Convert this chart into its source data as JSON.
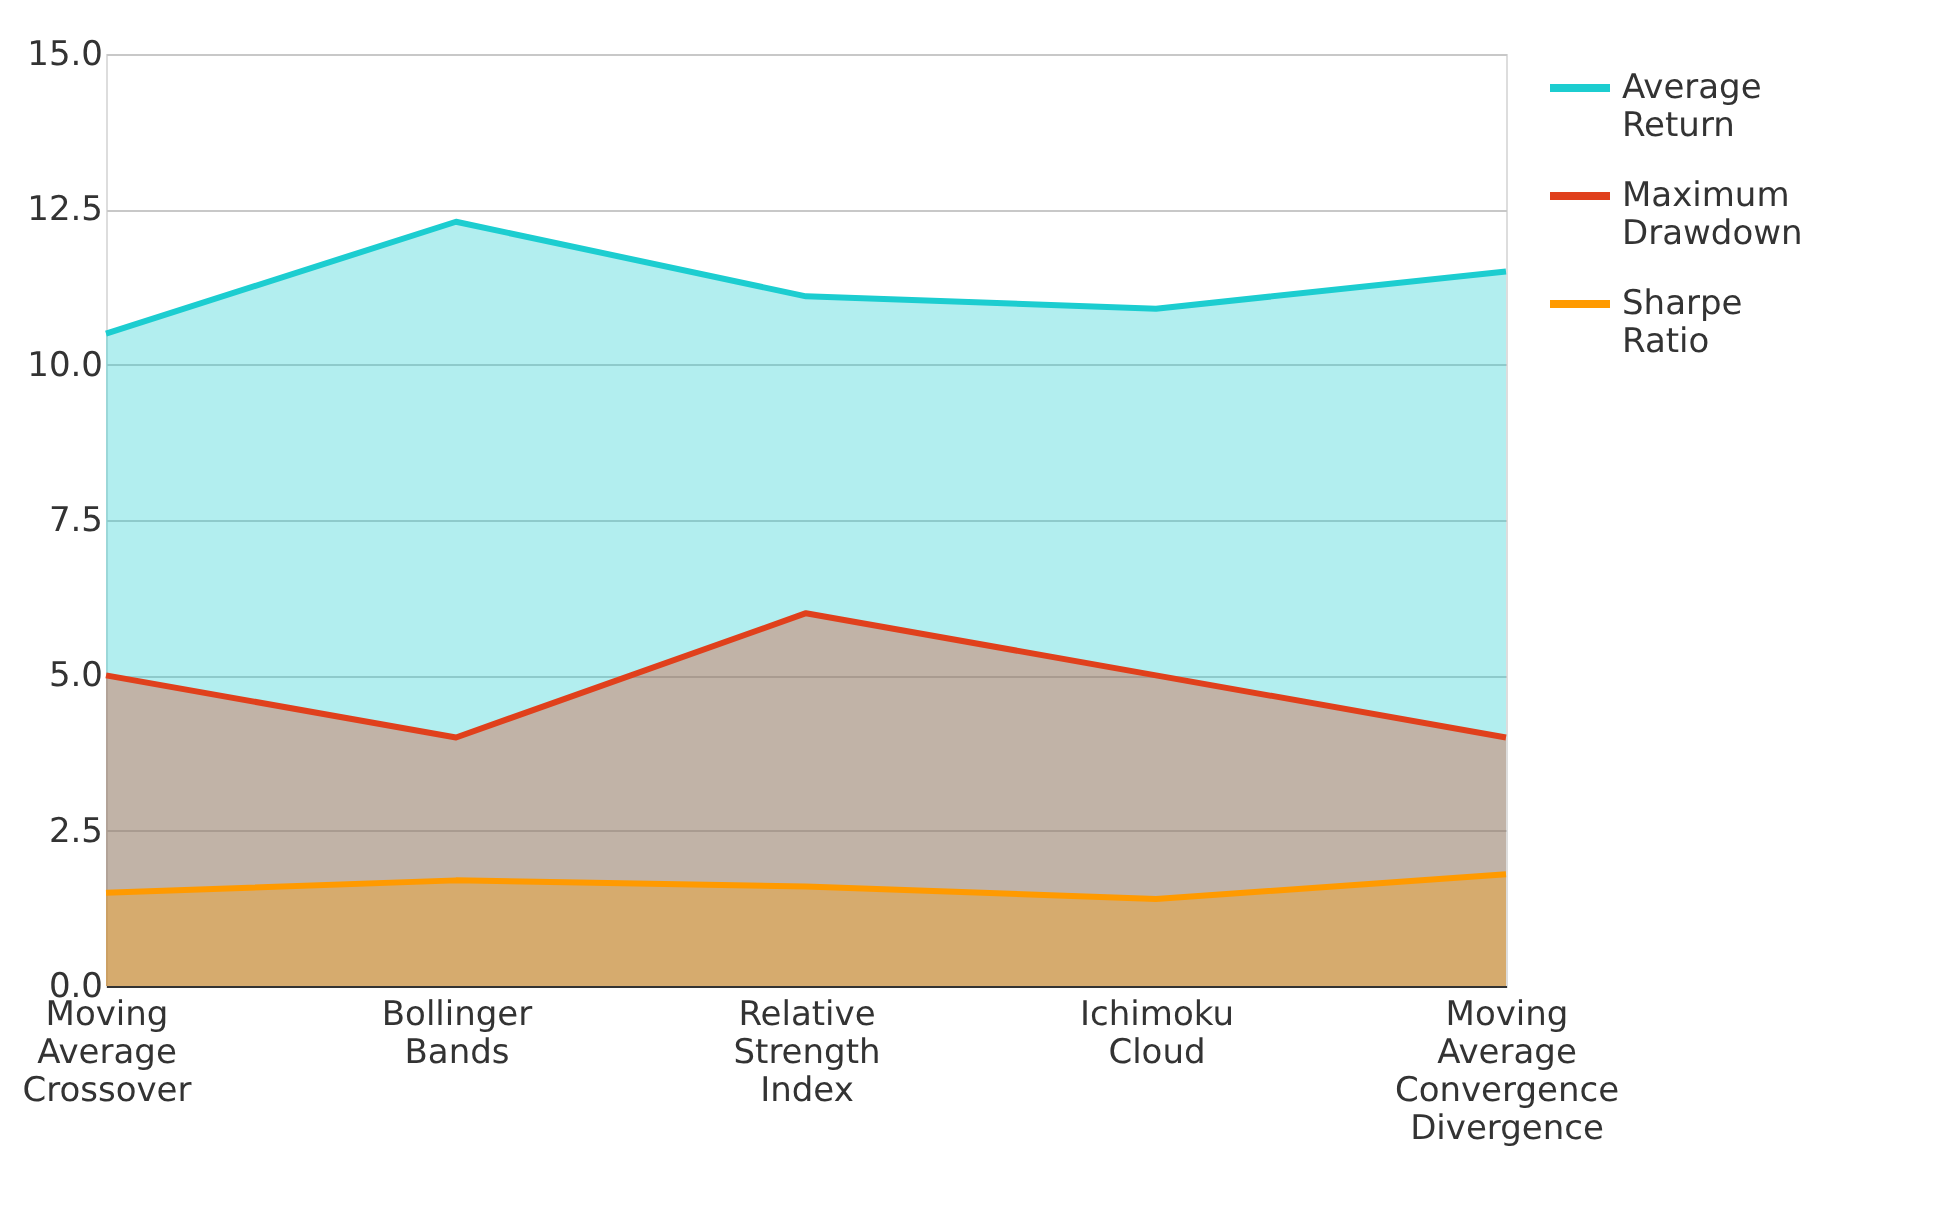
{
  "chart_data": {
    "type": "area",
    "categories": [
      "Moving Average Crossover",
      "Bollinger Bands",
      "Relative Strength Index",
      "Ichimoku Cloud",
      "Moving Average Convergence Divergence"
    ],
    "series": [
      {
        "name": "Average Return",
        "color": "#1ccdd0",
        "values": [
          10.5,
          12.3,
          11.1,
          10.9,
          11.5
        ]
      },
      {
        "name": "Maximum Drawdown",
        "color": "#e0401c",
        "values": [
          5.0,
          4.0,
          6.0,
          5.0,
          4.0
        ]
      },
      {
        "name": "Sharpe Ratio",
        "color": "#ff9a00",
        "values": [
          1.5,
          1.7,
          1.6,
          1.4,
          1.8
        ]
      }
    ],
    "ylim": [
      0,
      15
    ],
    "yticks": [
      {
        "value": 0,
        "label": "0.0"
      },
      {
        "value": 2.5,
        "label": "2.5"
      },
      {
        "value": 5,
        "label": "5.0"
      },
      {
        "value": 7.5,
        "label": "7.5"
      },
      {
        "value": 10,
        "label": "10.0"
      },
      {
        "value": 12.5,
        "label": "12.5"
      },
      {
        "value": 15,
        "label": "15.0"
      }
    ],
    "grid": "y",
    "legend": "top right"
  }
}
